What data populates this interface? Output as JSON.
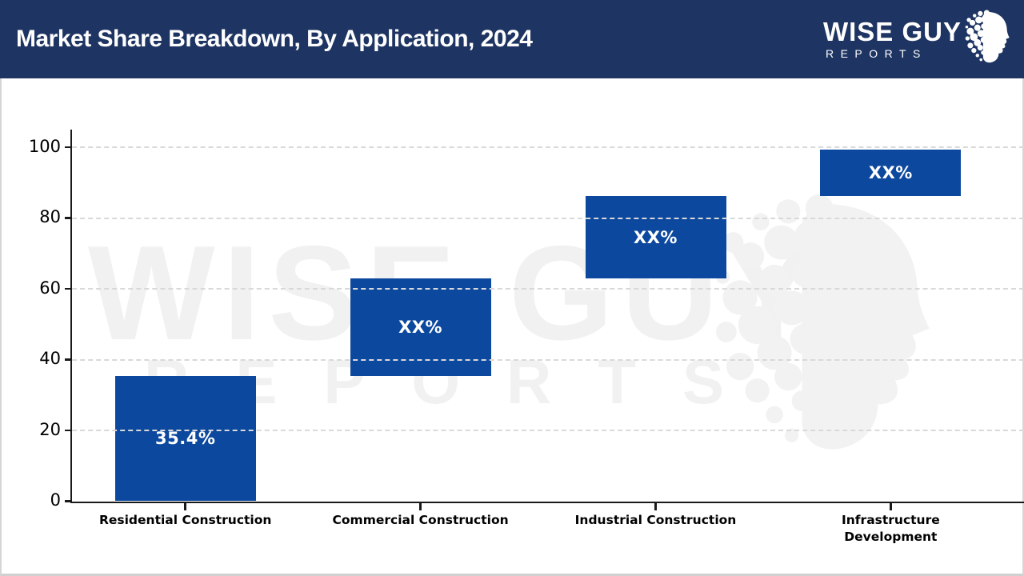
{
  "header": {
    "title": "Market Share Breakdown, By Application, 2024",
    "logo": {
      "line1": "WISE GUY",
      "line2": "REPORTS"
    }
  },
  "watermark": {
    "line1": "WISE GUY",
    "line2": "REPORTS"
  },
  "colors": {
    "header_bg": "#1e3462",
    "bar": "#0c489e",
    "grid": "#d9d9d9",
    "axis": "#1a1a1a",
    "watermark": "#f1f1f1",
    "title_text": "#ffffff",
    "bar_label_text": "#ffffff"
  },
  "chart_data": {
    "type": "bar",
    "subtype": "waterfall-segments",
    "title": "Market Share Breakdown, By Application, 2024",
    "categories": [
      "Residential Construction",
      "Commercial Construction",
      "Industrial Construction",
      "Infrastructure Development"
    ],
    "segments": [
      {
        "category": "Residential Construction",
        "start": 0,
        "end": 35.4,
        "label": "35.4%"
      },
      {
        "category": "Commercial Construction",
        "start": 35.4,
        "end": 62.9,
        "label": "XX%"
      },
      {
        "category": "Industrial Construction",
        "start": 62.9,
        "end": 86.3,
        "label": "XX%"
      },
      {
        "category": "Infrastructure Development",
        "start": 86.3,
        "end": 99.3,
        "label": "XX%"
      }
    ],
    "y_ticks": [
      0,
      20,
      40,
      60,
      80,
      100
    ],
    "ylim": [
      0,
      105
    ],
    "xlabel": "",
    "ylabel": "",
    "legend": "none",
    "grid": "horizontal-dashed"
  }
}
